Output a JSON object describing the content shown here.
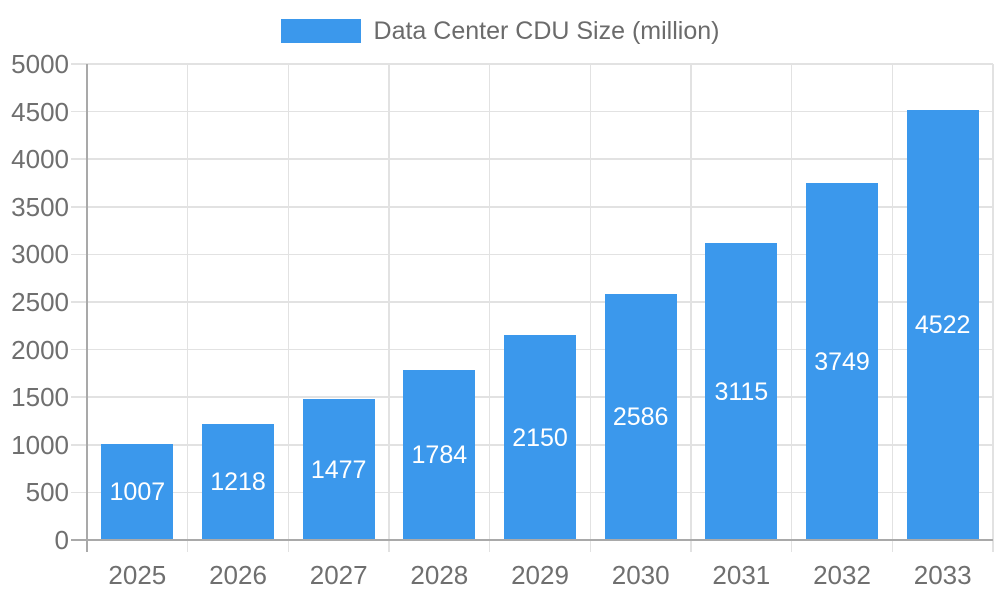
{
  "legend": {
    "label": "Data Center CDU Size (million)"
  },
  "chart_data": {
    "type": "bar",
    "title": "Data Center CDU Size (million)",
    "series_name": "Data Center CDU Size (million)",
    "categories": [
      "2025",
      "2026",
      "2027",
      "2028",
      "2029",
      "2030",
      "2031",
      "2032",
      "2033"
    ],
    "values": [
      1007,
      1218,
      1477,
      1784,
      2150,
      2586,
      3115,
      3749,
      4522
    ],
    "bar_value_labels": [
      "1007",
      "1218",
      "1477",
      "1784",
      "2150",
      "2586",
      "3115",
      "3749",
      "4522"
    ],
    "xlabel": "",
    "ylabel": "",
    "ylim": [
      0,
      5000
    ],
    "ytick_step": 500,
    "ytick_labels": [
      "0",
      "500",
      "1000",
      "1500",
      "2000",
      "2500",
      "3000",
      "3500",
      "4000",
      "4500",
      "5000"
    ],
    "grid": true,
    "legend_position": "top",
    "colors": {
      "bar": "#3B98EC",
      "bar_value_text": "#FFFFFF",
      "gridline": "#E2E2E2",
      "axis_line": "#A9A9A9",
      "tick_text": "#6F6F6F",
      "legend_text": "#6B6B6B"
    }
  }
}
